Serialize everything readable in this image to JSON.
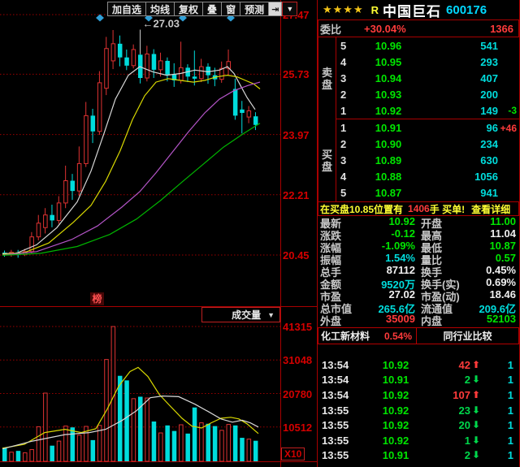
{
  "toolbar": {
    "buttons": [
      "加自选",
      "均线",
      "复权",
      "叠",
      "窗",
      "预测"
    ],
    "forward_icon": "⇥",
    "dropdown_icon": "▼"
  },
  "left_chart": {
    "rank_badge": "榜",
    "volume_dropdown_label": "成交量",
    "volume_dropdown_icon": "▼",
    "volume_unit_label": "X10",
    "annotation_text": "←27.03"
  },
  "chart_data": {
    "type": "candlestick+volume",
    "title": "中国巨石 600176 daily K-line",
    "price_gridlines": [
      27.47,
      25.73,
      23.97,
      22.21,
      20.45
    ],
    "volume_gridlines": [
      41315,
      31048,
      20780,
      10512
    ],
    "volume_unit": "X10",
    "annotated_high": {
      "index": 20,
      "price": 27.03
    },
    "marker_diamonds_x": [
      123,
      183,
      225,
      284
    ],
    "candles_format": [
      "open",
      "close",
      "low",
      "high",
      "volume",
      "direction"
    ],
    "candles": [
      [
        20.52,
        20.46,
        20.4,
        20.58,
        4200,
        "d"
      ],
      [
        20.46,
        20.53,
        20.4,
        20.6,
        2800,
        "u"
      ],
      [
        20.53,
        20.47,
        20.37,
        20.6,
        3200,
        "d"
      ],
      [
        20.47,
        20.55,
        20.42,
        20.63,
        2600,
        "u"
      ],
      [
        20.55,
        20.98,
        20.5,
        21.12,
        3600,
        "u"
      ],
      [
        20.98,
        21.38,
        20.88,
        21.62,
        10600,
        "u"
      ],
      [
        21.25,
        21.62,
        21.08,
        21.82,
        20900,
        "u"
      ],
      [
        21.62,
        21.46,
        21.26,
        21.92,
        4800,
        "d"
      ],
      [
        21.46,
        21.97,
        21.36,
        22.17,
        6200,
        "u"
      ],
      [
        21.97,
        22.62,
        21.82,
        23.06,
        10800,
        "u"
      ],
      [
        22.62,
        22.32,
        22.06,
        22.82,
        10400,
        "d"
      ],
      [
        22.32,
        23.12,
        22.18,
        23.62,
        8000,
        "u"
      ],
      [
        23.12,
        24.52,
        23.02,
        24.92,
        10700,
        "u"
      ],
      [
        24.52,
        24.06,
        23.72,
        24.72,
        6500,
        "d"
      ],
      [
        24.06,
        25.48,
        23.96,
        25.82,
        11000,
        "u"
      ],
      [
        25.32,
        26.48,
        25.12,
        26.82,
        31200,
        "u"
      ],
      [
        26.12,
        26.62,
        25.88,
        27.02,
        41300,
        "u"
      ],
      [
        26.62,
        26.22,
        25.96,
        26.86,
        26200,
        "d"
      ],
      [
        26.22,
        25.98,
        25.85,
        26.45,
        24800,
        "d"
      ],
      [
        25.98,
        26.45,
        25.9,
        26.6,
        19200,
        "u"
      ],
      [
        26.3,
        25.62,
        25.46,
        27.03,
        19800,
        "d"
      ],
      [
        25.62,
        26.32,
        25.52,
        26.56,
        19400,
        "u"
      ],
      [
        26.32,
        25.86,
        25.62,
        26.46,
        12200,
        "d"
      ],
      [
        25.86,
        26.12,
        25.66,
        26.36,
        8700,
        "u"
      ],
      [
        26.12,
        25.72,
        25.52,
        26.22,
        11000,
        "d"
      ],
      [
        25.72,
        25.55,
        25.36,
        26.05,
        9300,
        "d"
      ],
      [
        25.55,
        25.92,
        25.46,
        26.68,
        11200,
        "u"
      ],
      [
        25.92,
        25.66,
        25.5,
        26.02,
        8500,
        "d"
      ],
      [
        25.66,
        25.6,
        25.4,
        26.42,
        16500,
        "d"
      ],
      [
        25.6,
        25.95,
        25.5,
        26.18,
        11800,
        "u"
      ],
      [
        25.95,
        25.7,
        25.45,
        26.05,
        11500,
        "d"
      ],
      [
        25.7,
        25.58,
        25.38,
        25.92,
        10800,
        "d"
      ],
      [
        25.58,
        25.9,
        25.48,
        26.1,
        9500,
        "u"
      ],
      [
        25.9,
        26.1,
        25.7,
        26.45,
        11300,
        "u"
      ],
      [
        25.3,
        24.52,
        24.4,
        25.6,
        11000,
        "d"
      ],
      [
        24.7,
        24.6,
        24.0,
        24.95,
        7200,
        "d"
      ],
      [
        24.48,
        24.66,
        24.3,
        24.8,
        6800,
        "u"
      ],
      [
        24.5,
        24.25,
        24.1,
        24.62,
        6300,
        "d"
      ]
    ],
    "ma_price": [
      {
        "name": "ma-white",
        "color": "#d8d8d8",
        "points": [
          [
            3,
            20.49
          ],
          [
            20,
            20.5
          ],
          [
            45,
            20.75
          ],
          [
            70,
            21.25
          ],
          [
            95,
            22.0
          ],
          [
            112,
            22.9
          ],
          [
            128,
            24.0
          ],
          [
            142,
            25.0
          ],
          [
            158,
            25.7
          ],
          [
            172,
            25.95
          ],
          [
            188,
            25.8
          ],
          [
            205,
            25.7
          ],
          [
            222,
            25.75
          ],
          [
            240,
            25.85
          ],
          [
            256,
            25.8
          ],
          [
            270,
            25.85
          ],
          [
            280,
            25.95
          ],
          [
            288,
            25.75
          ],
          [
            296,
            25.4
          ],
          [
            304,
            25.05
          ],
          [
            314,
            24.7
          ]
        ]
      },
      {
        "name": "ma-yellow",
        "color": "#d8d800",
        "points": [
          [
            3,
            20.47
          ],
          [
            30,
            20.52
          ],
          [
            60,
            20.8
          ],
          [
            90,
            21.4
          ],
          [
            112,
            21.9
          ],
          [
            130,
            22.6
          ],
          [
            148,
            23.5
          ],
          [
            163,
            24.4
          ],
          [
            178,
            25.1
          ],
          [
            192,
            25.5
          ],
          [
            207,
            25.6
          ],
          [
            222,
            25.55
          ],
          [
            238,
            25.5
          ],
          [
            252,
            25.55
          ],
          [
            266,
            25.65
          ],
          [
            280,
            25.7
          ],
          [
            292,
            25.65
          ],
          [
            302,
            25.55
          ],
          [
            312,
            25.45
          ],
          [
            320,
            25.3
          ]
        ]
      },
      {
        "name": "ma-magenta",
        "color": "#b455c8",
        "points": [
          [
            3,
            20.45
          ],
          [
            45,
            20.55
          ],
          [
            88,
            20.9
          ],
          [
            120,
            21.3
          ],
          [
            150,
            21.85
          ],
          [
            172,
            22.3
          ],
          [
            192,
            22.85
          ],
          [
            212,
            23.45
          ],
          [
            232,
            24.05
          ],
          [
            252,
            24.6
          ],
          [
            270,
            25.0
          ],
          [
            288,
            25.25
          ],
          [
            305,
            25.4
          ],
          [
            320,
            25.5
          ]
        ]
      },
      {
        "name": "ma-green",
        "color": "#00b400",
        "points": [
          [
            3,
            20.44
          ],
          [
            50,
            20.5
          ],
          [
            95,
            20.7
          ],
          [
            135,
            21.05
          ],
          [
            168,
            21.5
          ],
          [
            198,
            22.05
          ],
          [
            225,
            22.6
          ],
          [
            250,
            23.1
          ],
          [
            275,
            23.6
          ],
          [
            300,
            24.0
          ],
          [
            320,
            24.3
          ]
        ]
      }
    ],
    "ma_volume": [
      {
        "name": "vma-yellow",
        "color": "#d8d800",
        "points": [
          [
            3,
            4000
          ],
          [
            30,
            5200
          ],
          [
            55,
            8800
          ],
          [
            80,
            9800
          ],
          [
            100,
            8800
          ],
          [
            118,
            10000
          ],
          [
            132,
            16000
          ],
          [
            146,
            23000
          ],
          [
            160,
            27500
          ],
          [
            170,
            28800
          ],
          [
            182,
            26000
          ],
          [
            196,
            20500
          ],
          [
            210,
            16800
          ],
          [
            224,
            13200
          ],
          [
            236,
            10800
          ],
          [
            248,
            10200
          ],
          [
            260,
            11800
          ],
          [
            272,
            13200
          ],
          [
            284,
            13500
          ],
          [
            294,
            13000
          ],
          [
            304,
            11500
          ],
          [
            318,
            8500
          ]
        ]
      },
      {
        "name": "vma-white",
        "color": "#d8d8d8",
        "points": [
          [
            3,
            3800
          ],
          [
            40,
            6200
          ],
          [
            80,
            8200
          ],
          [
            110,
            8800
          ],
          [
            130,
            9800
          ],
          [
            150,
            12500
          ],
          [
            168,
            15500
          ],
          [
            185,
            19500
          ],
          [
            200,
            20000
          ],
          [
            220,
            19800
          ],
          [
            240,
            17500
          ],
          [
            258,
            15000
          ],
          [
            272,
            13000
          ],
          [
            286,
            12000
          ],
          [
            298,
            12600
          ],
          [
            308,
            11800
          ],
          [
            318,
            10500
          ]
        ]
      }
    ]
  },
  "quote_panel": {
    "header": {
      "stars": "★★★★",
      "tag": "R",
      "name": "中国巨石",
      "code": "600176"
    },
    "weibi": {
      "label": "委比",
      "value": "+30.04%",
      "diff": "1366"
    },
    "sell_label": [
      "卖",
      "盘"
    ],
    "buy_label": [
      "买",
      "盘"
    ],
    "asks": [
      {
        "level": "5",
        "price": "10.96",
        "vol": "541",
        "delta": ""
      },
      {
        "level": "4",
        "price": "10.95",
        "vol": "293",
        "delta": ""
      },
      {
        "level": "3",
        "price": "10.94",
        "vol": "407",
        "delta": ""
      },
      {
        "level": "2",
        "price": "10.93",
        "vol": "200",
        "delta": ""
      },
      {
        "level": "1",
        "price": "10.92",
        "vol": "149",
        "delta": "-3"
      }
    ],
    "bids": [
      {
        "level": "1",
        "price": "10.91",
        "vol": "96",
        "delta": "+46"
      },
      {
        "level": "2",
        "price": "10.90",
        "vol": "234",
        "delta": ""
      },
      {
        "level": "3",
        "price": "10.89",
        "vol": "630",
        "delta": ""
      },
      {
        "level": "4",
        "price": "10.88",
        "vol": "1056",
        "delta": ""
      },
      {
        "level": "5",
        "price": "10.87",
        "vol": "941",
        "delta": ""
      }
    ],
    "alert": {
      "pre": "在买盘10.85位置有",
      "count": "1406",
      "mid": "手 买单!",
      "link": "查看详细"
    },
    "stats_rows": [
      [
        {
          "label": "最新",
          "value": "10.92",
          "color": "green"
        },
        {
          "label": "开盘",
          "value": "11.00",
          "color": "green"
        }
      ],
      [
        {
          "label": "涨跌",
          "value": "-0.12",
          "color": "green"
        },
        {
          "label": "最高",
          "value": "11.04",
          "color": "white"
        }
      ],
      [
        {
          "label": "涨幅",
          "value": "-1.09%",
          "color": "green"
        },
        {
          "label": "最低",
          "value": "10.87",
          "color": "green"
        }
      ],
      [
        {
          "label": "振幅",
          "value": "1.54%",
          "color": "cyan"
        },
        {
          "label": "量比",
          "value": "0.57",
          "color": "green"
        }
      ],
      [
        {
          "label": "总手",
          "value": "87112",
          "color": "white"
        },
        {
          "label": "换手",
          "value": "0.45%",
          "color": "white"
        }
      ],
      [
        {
          "label": "金额",
          "value": "9520万",
          "color": "cyan"
        },
        {
          "label": "换手(实)",
          "value": "0.69%",
          "color": "white"
        }
      ],
      [
        {
          "label": "市盈",
          "value": "27.02",
          "color": "white"
        },
        {
          "label": "市盈(动)",
          "value": "18.46",
          "color": "white"
        }
      ],
      [
        {
          "label": "总市值",
          "value": "265.6亿",
          "color": "cyan"
        },
        {
          "label": "流通值",
          "value": "209.6亿",
          "color": "cyan"
        }
      ],
      [
        {
          "label": "外盘",
          "value": "35009",
          "color": "red"
        },
        {
          "label": "内盘",
          "value": "52103",
          "color": "green"
        }
      ]
    ],
    "sector": {
      "name": "化工新材料",
      "change": "0.54%",
      "compare_link": "同行业比较"
    },
    "ticks": [
      {
        "time": "13:54",
        "price": "10.92",
        "vol": "42",
        "dir": "up",
        "count": "1"
      },
      {
        "time": "13:54",
        "price": "10.91",
        "vol": "2",
        "dir": "down",
        "count": "1"
      },
      {
        "time": "13:54",
        "price": "10.92",
        "vol": "107",
        "dir": "up",
        "count": "1"
      },
      {
        "time": "13:55",
        "price": "10.92",
        "vol": "23",
        "dir": "down",
        "count": "1"
      },
      {
        "time": "13:55",
        "price": "10.92",
        "vol": "20",
        "dir": "down",
        "count": "1"
      },
      {
        "time": "13:55",
        "price": "10.92",
        "vol": "1",
        "dir": "down",
        "count": "1"
      },
      {
        "time": "13:55",
        "price": "10.91",
        "vol": "2",
        "dir": "down",
        "count": "1"
      }
    ]
  },
  "colors": {
    "up": "#e03232",
    "down": "#00dcdc",
    "grid": "#9b0000",
    "axis_text": "#d40000",
    "diamond": "#2fa0d8",
    "annotation": "#c8c8c8"
  }
}
